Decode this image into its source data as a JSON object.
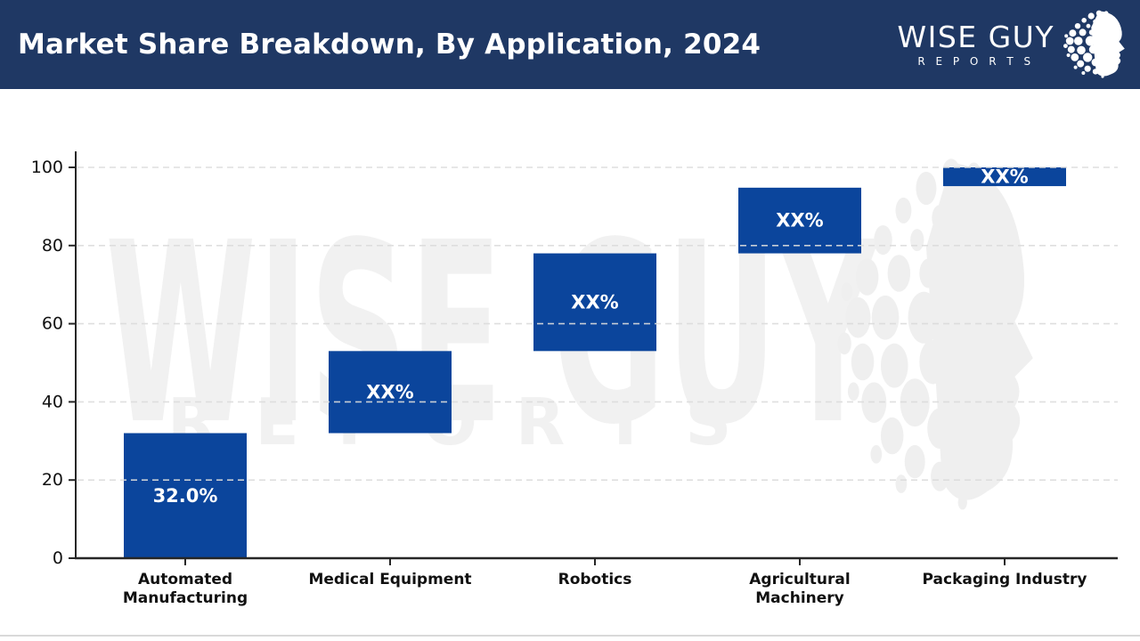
{
  "header": {
    "title": "Market Share Breakdown, By Application, 2024",
    "logo": {
      "line1": "WISE GUY",
      "line2": "R E P O R T S"
    }
  },
  "watermark": {
    "line1": "WISE GUY",
    "line2": "R E P O R T S"
  },
  "colors": {
    "header_bg": "#1f3864",
    "bar": "#0b459c",
    "grid": "#dcdcdc",
    "axis": "#262626",
    "tick_label": "#111111",
    "bar_label": "#ffffff",
    "watermark": "#f1f1f1"
  },
  "chart_data": {
    "type": "bar",
    "subtype": "waterfall",
    "title": "Market Share Breakdown, By Application, 2024",
    "categories": [
      "Automated Manufacturing",
      "Medical Equipment",
      "Robotics",
      "Agricultural Machinery",
      "Packaging Industry"
    ],
    "category_lines": [
      [
        "Automated",
        "Manufacturing"
      ],
      [
        "Medical Equipment"
      ],
      [
        "Robotics"
      ],
      [
        "Agricultural",
        "Machinery"
      ],
      [
        "Packaging Industry"
      ]
    ],
    "segments": [
      {
        "start": 0,
        "end": 32,
        "label": "32.0%"
      },
      {
        "start": 32,
        "end": 53,
        "label": "XX%"
      },
      {
        "start": 53,
        "end": 78,
        "label": "XX%"
      },
      {
        "start": 78,
        "end": 94.8,
        "label": "XX%"
      },
      {
        "start": 95.2,
        "end": 100,
        "label": "XX%"
      }
    ],
    "yticks": [
      0,
      20,
      40,
      60,
      80,
      100
    ],
    "ylim": [
      0,
      100
    ],
    "xlabel": "",
    "ylabel": "",
    "grid": "horizontal-dashed",
    "legend": "none"
  }
}
